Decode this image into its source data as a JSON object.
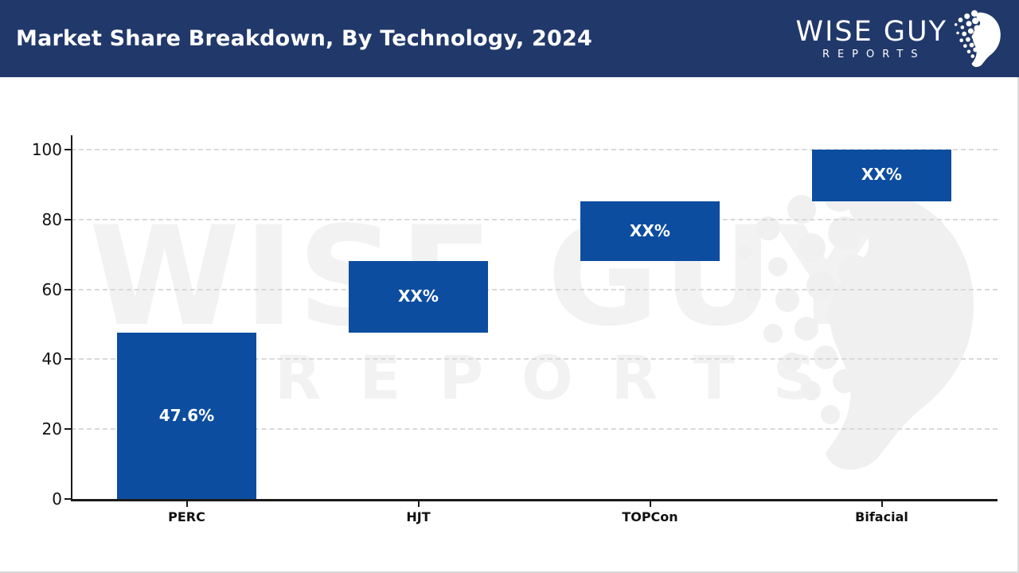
{
  "header": {
    "title": "Market Share Breakdown, By Technology, 2024",
    "logo": {
      "line1": "WISE GUY",
      "line2": "REPORTS"
    }
  },
  "watermark": {
    "line1": "WISE GUY",
    "line2": "REPORTS"
  },
  "colors": {
    "header_bg": "#21386a",
    "bar": "#0d4da0",
    "bar_label": "#ffffff",
    "grid": "#d9d9d9",
    "axis": "#1a1a1a",
    "watermark": "#f2f2f2"
  },
  "chart_data": {
    "type": "bar",
    "subtype": "waterfall",
    "title": "Market Share Breakdown, By Technology, 2024",
    "categories": [
      "PERC",
      "HJT",
      "TOPCon",
      "Bifacial"
    ],
    "segments": [
      {
        "category": "PERC",
        "start": 0,
        "end": 47.6,
        "value": 47.6,
        "label": "47.6%"
      },
      {
        "category": "HJT",
        "start": 47.6,
        "end": 68.0,
        "value": 20.4,
        "label": "XX%"
      },
      {
        "category": "TOPCon",
        "start": 68.0,
        "end": 85.2,
        "value": 17.2,
        "label": "XX%"
      },
      {
        "category": "Bifacial",
        "start": 85.2,
        "end": 100.0,
        "value": 14.8,
        "label": "XX%"
      }
    ],
    "ylim": [
      0,
      100
    ],
    "yticks": [
      0,
      20,
      40,
      60,
      80,
      100
    ],
    "grid": "horizontal-dashed",
    "legend": "none",
    "xlabel": "",
    "ylabel": ""
  }
}
